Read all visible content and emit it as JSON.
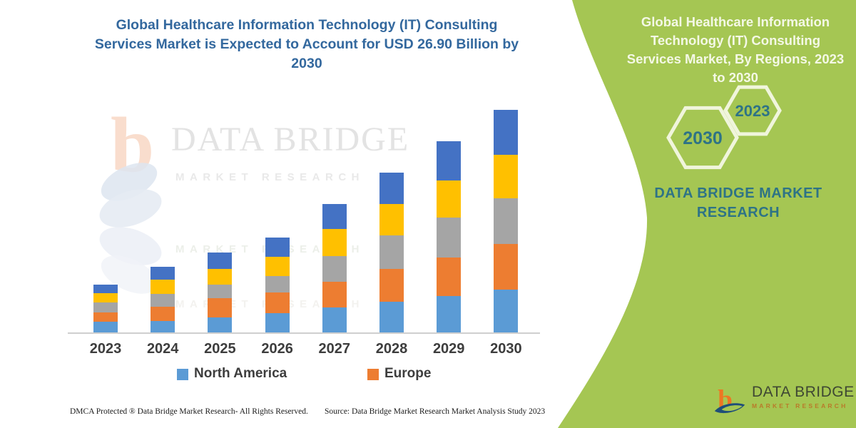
{
  "header": {
    "title": "Global Healthcare Information Technology (IT) Consulting Services Market is Expected to Account for USD 26.90 Billion by 2030"
  },
  "side_panel": {
    "title": "Global Healthcare Information Technology (IT) Consulting Services Market, By Regions, 2023 to 2030",
    "hexagons": [
      {
        "label": "2030"
      },
      {
        "label": "2023"
      }
    ],
    "brand_text": "DATA BRIDGE MARKET RESEARCH",
    "panel_color": "#a5c653",
    "teal_color": "#2e7386"
  },
  "chart_data": {
    "type": "bar",
    "stacked": true,
    "unit": "USD Billion",
    "title": "",
    "xlabel": "",
    "ylabel": "",
    "ylim": [
      0,
      27
    ],
    "grid": false,
    "legend_position": "bottom",
    "categories": [
      "2023",
      "2024",
      "2025",
      "2026",
      "2027",
      "2028",
      "2029",
      "2030"
    ],
    "series": [
      {
        "name": "North America",
        "color": "#5b9bd5",
        "in_legend": true,
        "values": [
          1.3,
          1.4,
          1.8,
          2.3,
          3.0,
          3.7,
          4.4,
          5.2
        ]
      },
      {
        "name": "Europe",
        "color": "#ed7d31",
        "in_legend": true,
        "values": [
          1.1,
          1.7,
          2.3,
          2.5,
          3.1,
          4.0,
          4.7,
          5.5
        ]
      },
      {
        "name": "Unlabeled (gray)",
        "color": "#a5a5a5",
        "in_legend": false,
        "values": [
          1.2,
          1.6,
          1.7,
          2.0,
          3.1,
          4.0,
          4.8,
          5.5
        ]
      },
      {
        "name": "Unlabeled (yellow)",
        "color": "#ffc000",
        "in_legend": false,
        "values": [
          1.1,
          1.7,
          1.9,
          2.3,
          3.3,
          3.8,
          4.5,
          5.3
        ]
      },
      {
        "name": "Unlabeled (dark blue)",
        "color": "#4472c4",
        "in_legend": false,
        "values": [
          1.1,
          1.5,
          2.0,
          2.4,
          3.0,
          3.8,
          4.7,
          5.4
        ]
      }
    ],
    "totals": [
      5.8,
      7.9,
      9.7,
      11.5,
      15.5,
      19.3,
      23.1,
      26.9
    ]
  },
  "legend": [
    {
      "label": "North America",
      "color": "#5b9bd5"
    },
    {
      "label": "Europe",
      "color": "#ed7d31"
    }
  ],
  "watermark": {
    "line1": "DATA BRIDGE",
    "line2": "MARKET RESEARCH"
  },
  "logo": {
    "line1": "DATA BRIDGE",
    "line2": "MARKET RESEARCH"
  },
  "footer": {
    "left": "DMCA Protected ® Data Bridge Market Research-  All Rights Reserved.",
    "source": "Source: Data Bridge Market Research  Market Analysis Study 2023"
  }
}
